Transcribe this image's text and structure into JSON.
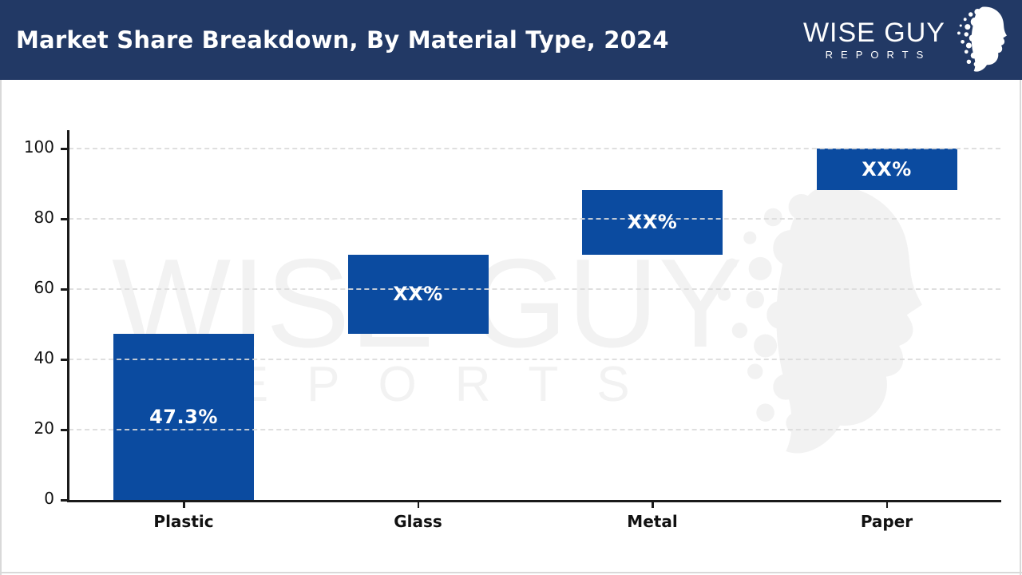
{
  "header": {
    "title": "Market Share Breakdown, By Material Type, 2024",
    "logo": {
      "line1": "WISE GUY",
      "line2": "REPORTS"
    }
  },
  "watermark": {
    "line1": "WISE GUY",
    "line2": "REPORTS"
  },
  "colors": {
    "header_background": "#223965",
    "bar": "#0B4BA0",
    "bar_label": "#FFFFFF",
    "gridline": "#DBDBDB",
    "axis": "#1A1A1A",
    "watermark": "#F2F2F2",
    "page_border": "#D9D9D9"
  },
  "chart_data": {
    "type": "bar",
    "subtype": "waterfall",
    "title": "Market Share Breakdown, By Material Type, 2024",
    "xlabel": "",
    "ylabel": "",
    "categories": [
      "Plastic",
      "Glass",
      "Metal",
      "Paper"
    ],
    "segments": [
      {
        "category": "Plastic",
        "start": 0,
        "end": 47.3,
        "size": 47.3,
        "label": "47.3%"
      },
      {
        "category": "Glass",
        "start": 47.3,
        "end": 69.8,
        "size": 22.5,
        "label": "XX%"
      },
      {
        "category": "Metal",
        "start": 69.8,
        "end": 88.2,
        "size": 18.4,
        "label": "XX%"
      },
      {
        "category": "Paper",
        "start": 88.2,
        "end": 100.0,
        "size": 11.8,
        "label": "XX%"
      }
    ],
    "yticks": [
      0,
      20,
      40,
      60,
      80,
      100
    ],
    "ylim": [
      0,
      105
    ],
    "grid": "horizontal dashed, drawn over bars",
    "legend": "none"
  }
}
